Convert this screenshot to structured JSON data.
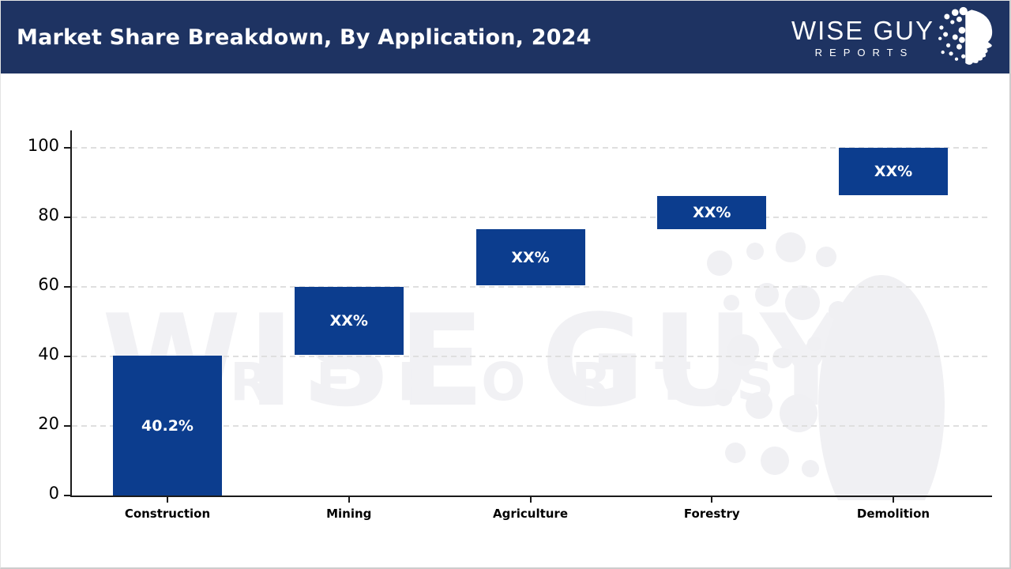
{
  "header": {
    "title": "Market Share Breakdown, By Application, 2024",
    "bg_color": "#1e3362",
    "logo": {
      "line1": "WISE GUY",
      "line2": "REPORTS"
    }
  },
  "watermark": {
    "line1": "WISE GUY",
    "line2": "REPORTS"
  },
  "chart_data": {
    "type": "bar",
    "subtype": "waterfall",
    "title": "Market Share Breakdown, By Application, 2024",
    "categories": [
      "Construction",
      "Mining",
      "Agriculture",
      "Forestry",
      "Demolition"
    ],
    "segments": [
      {
        "category": "Construction",
        "start": 0,
        "end": 40.2,
        "value": 40.2,
        "label": "40.2%"
      },
      {
        "category": "Mining",
        "start": 40.5,
        "end": 60.0,
        "value": 19.5,
        "label": "XX%"
      },
      {
        "category": "Agriculture",
        "start": 60.5,
        "end": 76.5,
        "value": 16.0,
        "label": "XX%"
      },
      {
        "category": "Forestry",
        "start": 76.6,
        "end": 86.1,
        "value": 9.5,
        "label": "XX%"
      },
      {
        "category": "Demolition",
        "start": 86.4,
        "end": 100,
        "value": 13.6,
        "label": "XX%"
      }
    ],
    "y_ticks": [
      0,
      20,
      40,
      60,
      80,
      100
    ],
    "ylim": [
      0,
      105
    ],
    "xlabel": "",
    "ylabel": "",
    "grid": "horizontal-dashed",
    "legend": "none",
    "bar_color": "#0c3d8e",
    "bar_label_color": "#ffffff",
    "axis_color": "#1a1a1a"
  }
}
